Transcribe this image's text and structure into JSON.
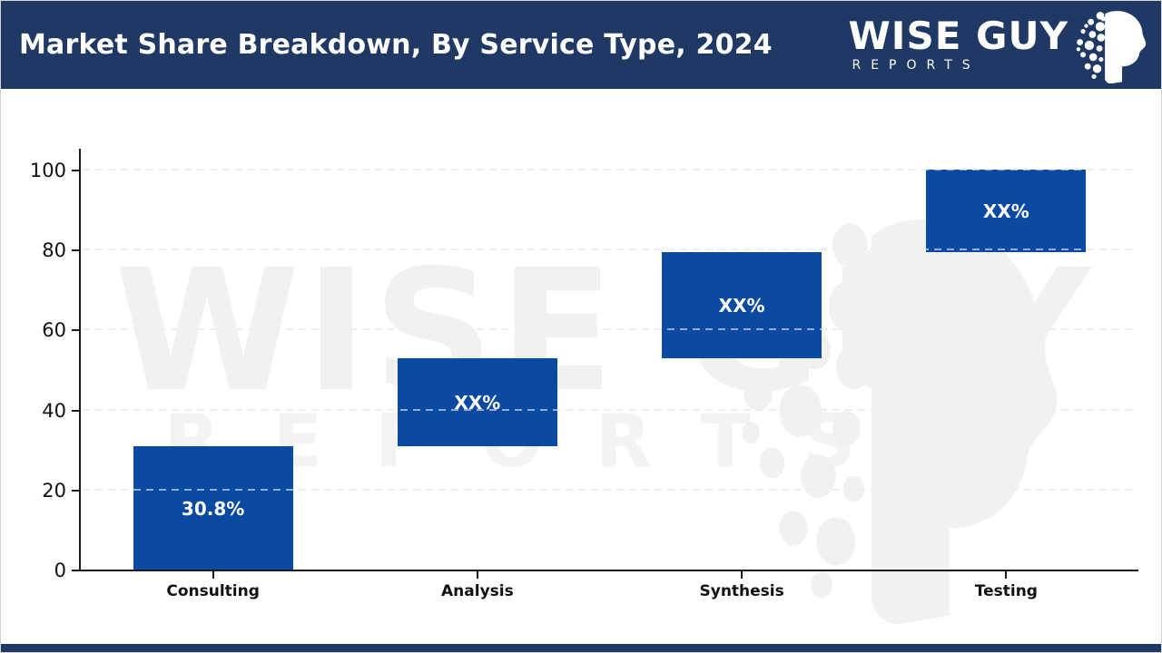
{
  "header": {
    "title": "Market Share Breakdown, By Service Type, 2024",
    "logo": {
      "name": "WISE GUY",
      "sub": "REPORTS"
    }
  },
  "watermark": {
    "name": "WISE GUY",
    "sub": "REPORTS"
  },
  "colors": {
    "header_bg": "#1f3864",
    "bar": "#0b4aa2",
    "gridline": "#d9d9d9",
    "axis": "#1a1a1a",
    "watermark": "#f1f1f2",
    "bar_label": "#ffffff"
  },
  "chart_data": {
    "type": "bar",
    "variant": "waterfall",
    "title": "Market Share Breakdown, By Service Type, 2024",
    "categories": [
      "Consulting",
      "Analysis",
      "Synthesis",
      "Testing"
    ],
    "segments": [
      {
        "category": "Consulting",
        "start": 0,
        "end": 30.8,
        "label": "30.8%"
      },
      {
        "category": "Analysis",
        "start": 30.8,
        "end": 52.9,
        "label": "XX%"
      },
      {
        "category": "Synthesis",
        "start": 52.9,
        "end": 79.4,
        "label": "XX%"
      },
      {
        "category": "Testing",
        "start": 79.4,
        "end": 100,
        "label": "XX%"
      }
    ],
    "xlabel": "",
    "ylabel": "",
    "yticks": [
      0,
      20,
      40,
      60,
      80,
      100
    ],
    "ylim": [
      0,
      105
    ],
    "grid": "horizontal-dashed",
    "legend": "none"
  }
}
